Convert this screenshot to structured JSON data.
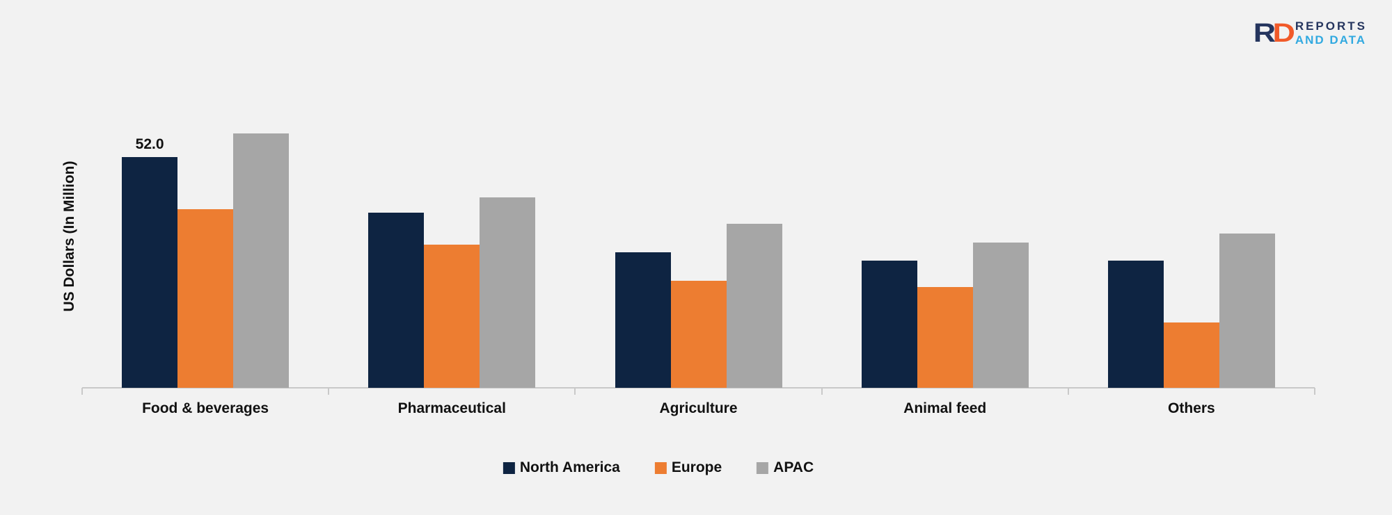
{
  "logo": {
    "monogram_r": "R",
    "monogram_d": "D",
    "line1": "REPORTS",
    "line2": "AND DATA",
    "colors": {
      "navy": "#25355e",
      "orange": "#f15a29",
      "blue": "#31a9e0"
    }
  },
  "colors": {
    "background": "#f2f2f2",
    "axis_line": "#c9c9c9",
    "label_text": "#111111"
  },
  "chart_data": {
    "type": "bar",
    "title": "",
    "xlabel": "",
    "ylabel": "US Dollars (In Million)",
    "categories": [
      "Food & beverages",
      "Pharmaceutical",
      "Agriculture",
      "Animal feed",
      "Others"
    ],
    "series": [
      {
        "name": "North America",
        "color": "#0e2442",
        "values": [
          52.0,
          39.5,
          30.6,
          28.7,
          28.7
        ]
      },
      {
        "name": "Europe",
        "color": "#ed7d31",
        "values": [
          40.3,
          32.3,
          24.1,
          22.7,
          14.7
        ]
      },
      {
        "name": "APAC",
        "color": "#a6a6a6",
        "values": [
          57.3,
          42.9,
          36.9,
          32.7,
          34.8
        ]
      }
    ],
    "data_labels": [
      {
        "series": "North America",
        "category": "Food & beverages",
        "text": "52.0"
      }
    ],
    "ylim": [
      0,
      65.5
    ],
    "grid": false,
    "legend_position": "bottom"
  }
}
